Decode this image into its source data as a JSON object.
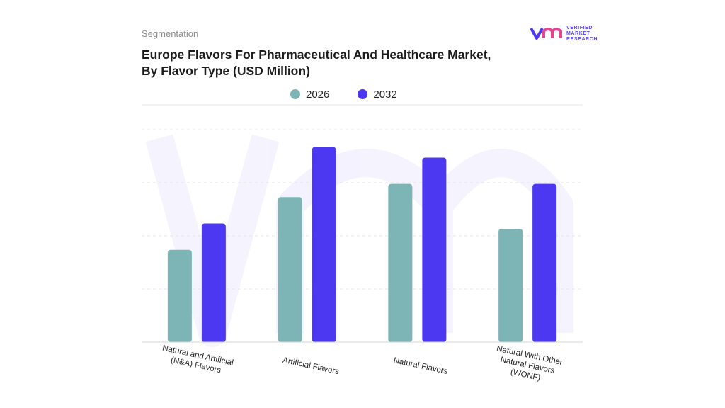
{
  "header": {
    "segment": "Segmentation",
    "title_line1": "Europe Flavors For Pharmaceutical And Healthcare Market,",
    "title_line2": "By Flavor Type (USD Million)"
  },
  "logo": {
    "line1": "VERIFIED",
    "line2": "MARKET",
    "line3": "RESEARCH"
  },
  "chart_data": {
    "type": "bar",
    "title": "Europe Flavors For Pharmaceutical And Healthcare Market, By Flavor Type (USD Million)",
    "categories": [
      "Natural and Artificial (N&A) Flavors",
      "Artificial Flavors",
      "Natural Flavors",
      "Natural With Other Natural Flavors (WONF)"
    ],
    "series": [
      {
        "name": "2026",
        "color": "#7db4b5",
        "values": [
          1.75,
          2.75,
          3.0,
          2.15
        ]
      },
      {
        "name": "2032",
        "color": "#4b38f0",
        "values": [
          2.25,
          3.7,
          3.5,
          3.0
        ]
      }
    ],
    "ylim": [
      0,
      4.5
    ],
    "grid": true,
    "legend": "top-center",
    "xlabel": "",
    "ylabel": ""
  }
}
